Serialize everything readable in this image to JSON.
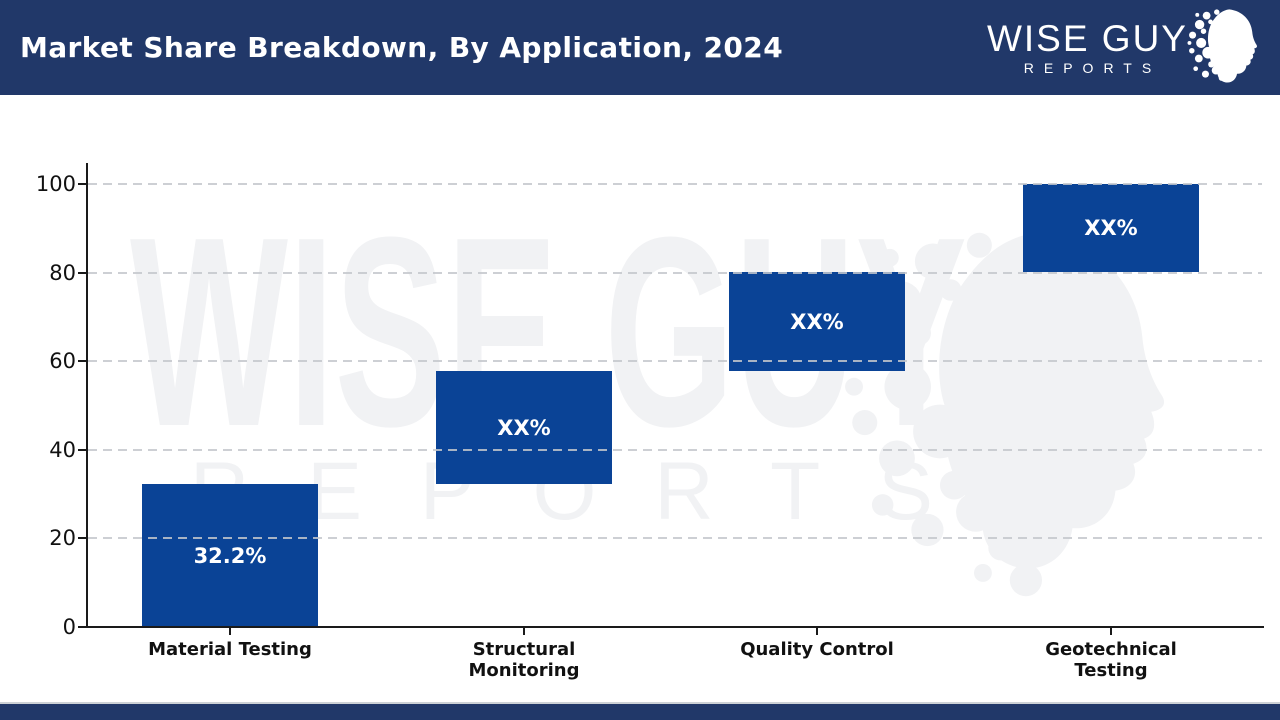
{
  "header": {
    "title": "Market Share Breakdown, By Application, 2024",
    "logo": {
      "line1": "WISE GUY",
      "line2": "REPORTS"
    }
  },
  "watermark": {
    "line1": "WISE GUY",
    "line2": "REPORTS"
  },
  "footer": {},
  "chart_data": {
    "type": "bar",
    "subtype": "waterfall",
    "title": "Market Share Breakdown, By Application, 2024",
    "categories": [
      "Material Testing",
      "Structural Monitoring",
      "Quality Control",
      "Geotechnical Testing"
    ],
    "category_lines": [
      [
        "Material Testing"
      ],
      [
        "Structural",
        "Monitoring"
      ],
      [
        "Quality Control"
      ],
      [
        "Geotechnical",
        "Testing"
      ]
    ],
    "segments": [
      {
        "category": "Material Testing",
        "start": 0,
        "end": 32.2,
        "value": 32.2,
        "label": "32.2%"
      },
      {
        "category": "Structural Monitoring",
        "start": 32.2,
        "end": 57.7,
        "value": 25.5,
        "label": "XX%"
      },
      {
        "category": "Quality Control",
        "start": 57.7,
        "end": 80.2,
        "value": 22.5,
        "label": "XX%"
      },
      {
        "category": "Geotechnical Testing",
        "start": 80.2,
        "end": 100,
        "value": 19.8,
        "label": "XX%"
      }
    ],
    "xlabel": "",
    "ylabel": "",
    "ylim": [
      0,
      100
    ],
    "yticks": [
      0,
      20,
      40,
      60,
      80,
      100
    ],
    "grid": "horizontal-dashed",
    "legend": "none",
    "bar_color": "#0a4396",
    "bar_label_color": "#ffffff",
    "axis_color": "#1a1a1a",
    "header_bg_color": "#213869",
    "watermark_color": "#f1f2f4"
  }
}
